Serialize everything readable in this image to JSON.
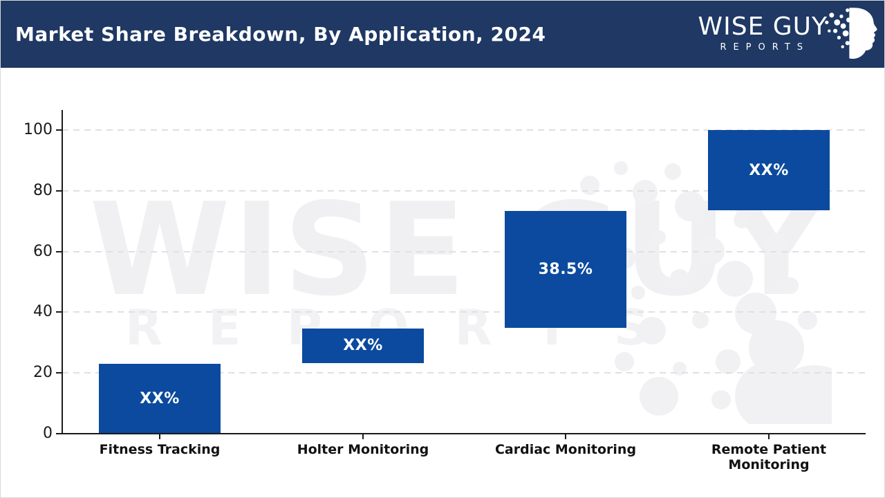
{
  "header": {
    "title": "Market Share Breakdown, By Application, 2024",
    "brand": {
      "line1": "WISE GUY",
      "line2": "REPORTS"
    }
  },
  "watermark": {
    "line1": "WISE GUY",
    "line2": "REPORTS"
  },
  "colors": {
    "header_bg": "#1f3864",
    "bar": "#0b4a9e",
    "axis": "#1a1a1a",
    "gridline": "#e0e0e3",
    "watermark_text": "#f0f0f3",
    "frame_border": "#d9d9d9",
    "bar_label_text": "#ffffff"
  },
  "chart_data": {
    "type": "bar",
    "subtype": "waterfall-style floating bars",
    "title": "Market Share Breakdown, By Application, 2024",
    "categories": [
      "Fitness Tracking",
      "Holter Monitoring",
      "Cardiac Monitoring",
      "Remote Patient Monitoring"
    ],
    "segments": [
      {
        "category": "Fitness Tracking",
        "label": "XX%",
        "start": 0,
        "end": 23
      },
      {
        "category": "Holter Monitoring",
        "label": "XX%",
        "start": 23.2,
        "end": 34.7
      },
      {
        "category": "Cardiac Monitoring",
        "label": "38.5%",
        "start": 34.8,
        "end": 73.3
      },
      {
        "category": "Remote Patient Monitoring",
        "label": "XX%",
        "start": 73.5,
        "end": 100
      }
    ],
    "xlabel": "",
    "ylabel": "",
    "ylim": [
      0,
      100
    ],
    "yticks": [
      0,
      20,
      40,
      60,
      80,
      100
    ],
    "grid": "horizontal dashed",
    "legend": "none",
    "bar_color": "#0b4a9e",
    "value_label_position": "center of bar"
  }
}
